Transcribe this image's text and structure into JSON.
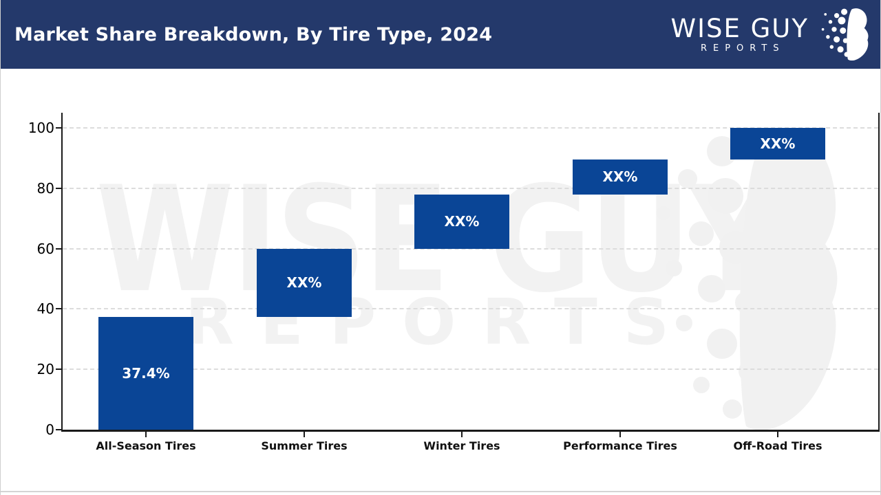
{
  "header": {
    "title": "Market Share Breakdown, By Tire Type, 2024",
    "logo": {
      "line1": "WISE GUY",
      "line2": "REPORTS"
    },
    "bg_color": "#24396B"
  },
  "watermark": {
    "line1": "WISE GUY",
    "line2": "REPORTS"
  },
  "chart_data": {
    "type": "bar",
    "subtype": "waterfall",
    "title": "Market Share Breakdown, By Tire Type, 2024",
    "unit": "%",
    "categories": [
      "All-Season Tires",
      "Summer Tires",
      "Winter Tires",
      "Performance Tires",
      "Off-Road Tires"
    ],
    "series": [
      {
        "name": "Market Share (%)",
        "segments": [
          {
            "start": 0,
            "end": 37.4,
            "label": "37.4%"
          },
          {
            "start": 37.4,
            "end": 60,
            "label": "XX%"
          },
          {
            "start": 60,
            "end": 78,
            "label": "XX%"
          },
          {
            "start": 78,
            "end": 89.5,
            "label": "XX%"
          },
          {
            "start": 89.5,
            "end": 100,
            "label": "XX%"
          }
        ]
      }
    ],
    "ylim": [
      0,
      105
    ],
    "yticks": [
      0,
      20,
      40,
      60,
      80,
      100
    ],
    "xlabel": "",
    "ylabel": "",
    "grid": "horizontal-dashed",
    "legend": "none",
    "bar_color": "#0A4596",
    "bar_label_color": "#ffffff"
  }
}
